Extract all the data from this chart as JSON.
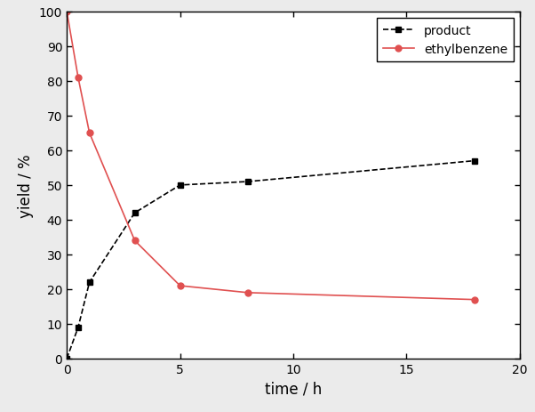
{
  "product_x": [
    0,
    0.5,
    1,
    3,
    5,
    8,
    18
  ],
  "product_y": [
    0,
    9,
    22,
    42,
    50,
    51,
    57
  ],
  "ethylbenzene_x": [
    0,
    0.5,
    1,
    3,
    5,
    8,
    18
  ],
  "ethylbenzene_y": [
    100,
    81,
    65,
    34,
    21,
    19,
    17
  ],
  "product_color": "#000000",
  "ethylbenzene_color": "#e05050",
  "xlabel": "time / h",
  "ylabel": "yield / %",
  "xlim": [
    0,
    20
  ],
  "ylim": [
    0,
    100
  ],
  "xticks": [
    0,
    5,
    10,
    15,
    20
  ],
  "yticks": [
    0,
    10,
    20,
    30,
    40,
    50,
    60,
    70,
    80,
    90,
    100
  ],
  "product_label": "product",
  "ethylbenzene_label": "ethylbenzene",
  "axis_fontsize": 12,
  "tick_fontsize": 10,
  "legend_fontsize": 10,
  "background_color": "#ebebeb",
  "plot_background": "#ffffff",
  "linewidth": 1.2,
  "markersize": 5
}
